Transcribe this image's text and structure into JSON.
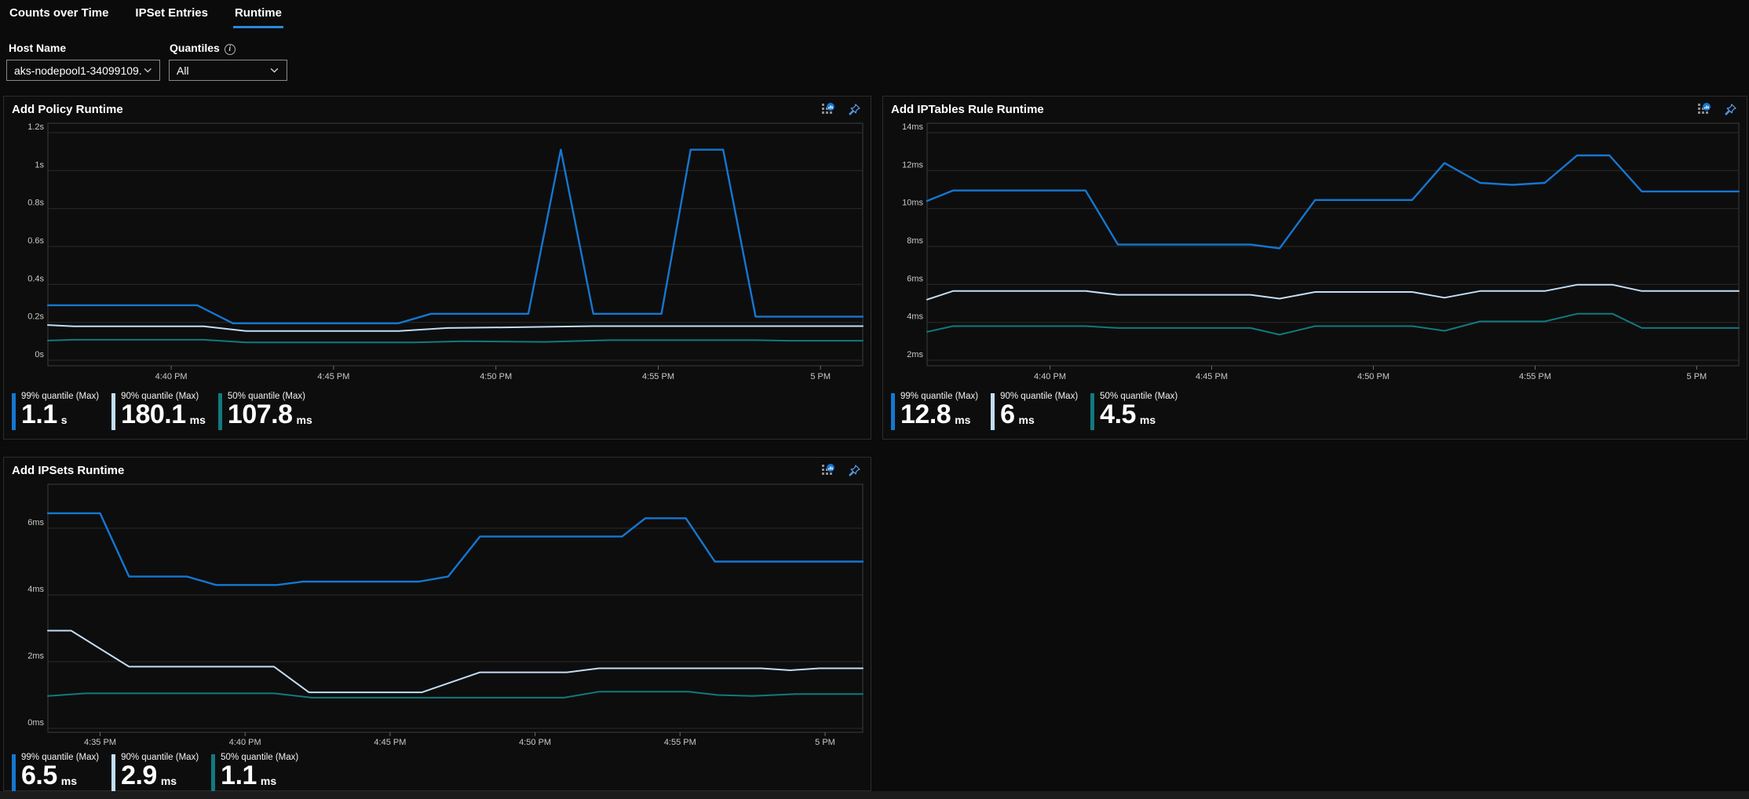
{
  "colors": {
    "accent": "#2b88d8",
    "p99": "#1577d0",
    "p90": "#c3ddf4",
    "p50": "#117a7e",
    "grid": "#2b2b2b",
    "plot_border": "#3d3d3d",
    "axis_text": "#c9c9c9",
    "page_bg": "#0b0b0c",
    "panel_border": "#2d2d2d"
  },
  "tabs": [
    {
      "label": "Counts over Time",
      "active": false
    },
    {
      "label": "IPSet Entries",
      "active": false
    },
    {
      "label": "Runtime",
      "active": true
    }
  ],
  "filters": {
    "host": {
      "label": "Host Name",
      "value": "aks-nodepool1-34099109..."
    },
    "quantiles": {
      "label": "Quantiles",
      "value": "All",
      "info_icon": "info-icon"
    }
  },
  "panels": [
    {
      "title": "Add Policy Runtime",
      "icons": [
        "visualization-icon",
        "pin-icon"
      ],
      "stats": [
        {
          "label": "99% quantile (Max)",
          "value": "1.1",
          "unit": "s",
          "color_key": "p99"
        },
        {
          "label": "90% quantile (Max)",
          "value": "180.1",
          "unit": "ms",
          "color_key": "p90"
        },
        {
          "label": "50% quantile (Max)",
          "value": "107.8",
          "unit": "ms",
          "color_key": "p50"
        }
      ]
    },
    {
      "title": "Add IPTables Rule Runtime",
      "icons": [
        "visualization-icon",
        "pin-icon"
      ],
      "stats": [
        {
          "label": "99% quantile (Max)",
          "value": "12.8",
          "unit": "ms",
          "color_key": "p99"
        },
        {
          "label": "90% quantile (Max)",
          "value": "6",
          "unit": "ms",
          "color_key": "p90"
        },
        {
          "label": "50% quantile (Max)",
          "value": "4.5",
          "unit": "ms",
          "color_key": "p50"
        }
      ]
    },
    {
      "title": "Add IPSets Runtime",
      "icons": [
        "visualization-icon",
        "pin-icon"
      ],
      "stats": [
        {
          "label": "99% quantile (Max)",
          "value": "6.5",
          "unit": "ms",
          "color_key": "p99"
        },
        {
          "label": "90% quantile (Max)",
          "value": "2.9",
          "unit": "ms",
          "color_key": "p90"
        },
        {
          "label": "50% quantile (Max)",
          "value": "1.1",
          "unit": "ms",
          "color_key": "p50"
        }
      ]
    }
  ],
  "chart_data": [
    {
      "type": "line",
      "title": "Add Policy Runtime",
      "y_unit": "seconds",
      "grid": "horizontal",
      "legend_position": "bottom-left",
      "y_ticks": [
        {
          "label": "1.2s",
          "v": 1.2
        },
        {
          "label": "1s",
          "v": 1.0
        },
        {
          "label": "0.8s",
          "v": 0.8
        },
        {
          "label": "0.6s",
          "v": 0.6
        },
        {
          "label": "0.4s",
          "v": 0.4
        },
        {
          "label": "0.2s",
          "v": 0.2
        },
        {
          "label": "0s",
          "v": 0
        }
      ],
      "x_domain": [
        36.2,
        61.3
      ],
      "x_domain_note": "minutes after 4:00 PM",
      "x_ticks": [
        {
          "label": "4:40 PM",
          "t": 40
        },
        {
          "label": "4:45 PM",
          "t": 45
        },
        {
          "label": "4:50 PM",
          "t": 50
        },
        {
          "label": "4:55 PM",
          "t": 55
        },
        {
          "label": "5 PM",
          "t": 60
        }
      ],
      "series": [
        {
          "name": "99% quantile (Max)",
          "color_key": "p99",
          "max": "1.1 s",
          "points": [
            [
              36.2,
              0.29
            ],
            [
              40.8,
              0.29
            ],
            [
              41.9,
              0.195
            ],
            [
              47.0,
              0.195
            ],
            [
              48.0,
              0.245
            ],
            [
              51.0,
              0.245
            ],
            [
              52.0,
              1.11
            ],
            [
              53.0,
              0.245
            ],
            [
              55.1,
              0.245
            ],
            [
              56.0,
              1.11
            ],
            [
              57.0,
              1.11
            ],
            [
              58.0,
              0.23
            ],
            [
              61.3,
              0.23
            ]
          ]
        },
        {
          "name": "90% quantile (Max)",
          "color_key": "p90",
          "max": "180.1 ms",
          "points": [
            [
              36.2,
              0.186
            ],
            [
              37.0,
              0.179
            ],
            [
              41.0,
              0.179
            ],
            [
              42.3,
              0.154
            ],
            [
              47.0,
              0.154
            ],
            [
              48.5,
              0.17
            ],
            [
              50.5,
              0.174
            ],
            [
              53.0,
              0.18
            ],
            [
              61.3,
              0.18
            ]
          ]
        },
        {
          "name": "50% quantile (Max)",
          "color_key": "p50",
          "max": "107.8 ms",
          "points": [
            [
              36.2,
              0.104
            ],
            [
              37.0,
              0.108
            ],
            [
              41.0,
              0.108
            ],
            [
              42.3,
              0.094
            ],
            [
              47.5,
              0.094
            ],
            [
              49.0,
              0.1
            ],
            [
              51.5,
              0.097
            ],
            [
              53.5,
              0.106
            ],
            [
              58.0,
              0.106
            ],
            [
              59.0,
              0.103
            ],
            [
              61.3,
              0.103
            ]
          ]
        }
      ]
    },
    {
      "type": "line",
      "title": "Add IPTables Rule Runtime",
      "y_unit": "ms",
      "grid": "horizontal",
      "legend_position": "bottom-left",
      "y_ticks": [
        {
          "label": "14ms",
          "v": 14
        },
        {
          "label": "12ms",
          "v": 12
        },
        {
          "label": "10ms",
          "v": 10
        },
        {
          "label": "8ms",
          "v": 8
        },
        {
          "label": "6ms",
          "v": 6
        },
        {
          "label": "4ms",
          "v": 4
        },
        {
          "label": "2ms",
          "v": 2
        }
      ],
      "x_domain": [
        36.2,
        61.3
      ],
      "x_domain_note": "minutes after 4:00 PM",
      "x_ticks": [
        {
          "label": "4:40 PM",
          "t": 40
        },
        {
          "label": "4:45 PM",
          "t": 45
        },
        {
          "label": "4:50 PM",
          "t": 50
        },
        {
          "label": "4:55 PM",
          "t": 55
        },
        {
          "label": "5 PM",
          "t": 60
        }
      ],
      "series": [
        {
          "name": "99% quantile (Max)",
          "color_key": "p99",
          "max": "12.8 ms",
          "points": [
            [
              36.2,
              10.4
            ],
            [
              37.0,
              10.95
            ],
            [
              41.1,
              10.95
            ],
            [
              42.1,
              8.1
            ],
            [
              46.2,
              8.1
            ],
            [
              47.1,
              7.9
            ],
            [
              48.2,
              10.45
            ],
            [
              51.2,
              10.45
            ],
            [
              52.2,
              12.4
            ],
            [
              53.3,
              11.35
            ],
            [
              54.3,
              11.25
            ],
            [
              55.3,
              11.35
            ],
            [
              56.3,
              12.8
            ],
            [
              57.3,
              12.8
            ],
            [
              58.3,
              10.9
            ],
            [
              61.3,
              10.9
            ]
          ]
        },
        {
          "name": "90% quantile (Max)",
          "color_key": "p90",
          "max": "6 ms",
          "points": [
            [
              36.2,
              5.2
            ],
            [
              37.0,
              5.65
            ],
            [
              41.1,
              5.65
            ],
            [
              42.1,
              5.45
            ],
            [
              46.2,
              5.45
            ],
            [
              47.1,
              5.25
            ],
            [
              48.2,
              5.6
            ],
            [
              51.2,
              5.6
            ],
            [
              52.2,
              5.3
            ],
            [
              53.3,
              5.65
            ],
            [
              55.3,
              5.65
            ],
            [
              56.3,
              5.98
            ],
            [
              57.4,
              5.98
            ],
            [
              58.3,
              5.65
            ],
            [
              61.3,
              5.65
            ]
          ]
        },
        {
          "name": "50% quantile (Max)",
          "color_key": "p50",
          "max": "4.5 ms",
          "points": [
            [
              36.2,
              3.5
            ],
            [
              37.0,
              3.8
            ],
            [
              41.1,
              3.8
            ],
            [
              42.1,
              3.7
            ],
            [
              46.2,
              3.7
            ],
            [
              47.1,
              3.35
            ],
            [
              48.2,
              3.8
            ],
            [
              51.2,
              3.8
            ],
            [
              52.2,
              3.55
            ],
            [
              53.3,
              4.05
            ],
            [
              55.3,
              4.05
            ],
            [
              56.3,
              4.45
            ],
            [
              57.4,
              4.45
            ],
            [
              58.3,
              3.7
            ],
            [
              61.3,
              3.7
            ]
          ]
        }
      ]
    },
    {
      "type": "line",
      "title": "Add IPSets Runtime",
      "y_unit": "ms",
      "grid": "horizontal",
      "legend_position": "bottom-left",
      "y_ticks": [
        {
          "label": "6ms",
          "v": 6
        },
        {
          "label": "4ms",
          "v": 4
        },
        {
          "label": "2ms",
          "v": 2
        },
        {
          "label": "0ms",
          "v": 0
        }
      ],
      "x_domain": [
        33.2,
        61.3
      ],
      "x_domain_note": "minutes after 4:00 PM",
      "x_ticks": [
        {
          "label": "4:35 PM",
          "t": 35
        },
        {
          "label": "4:40 PM",
          "t": 40
        },
        {
          "label": "4:45 PM",
          "t": 45
        },
        {
          "label": "4:50 PM",
          "t": 50
        },
        {
          "label": "4:55 PM",
          "t": 55
        },
        {
          "label": "5 PM",
          "t": 60
        }
      ],
      "series": [
        {
          "name": "99% quantile (Max)",
          "color_key": "p99",
          "max": "6.5 ms",
          "points": [
            [
              33.2,
              6.45
            ],
            [
              35.0,
              6.45
            ],
            [
              36.0,
              4.55
            ],
            [
              38.0,
              4.55
            ],
            [
              39.0,
              4.3
            ],
            [
              41.1,
              4.3
            ],
            [
              42.0,
              4.4
            ],
            [
              46.0,
              4.4
            ],
            [
              47.0,
              4.55
            ],
            [
              48.1,
              5.75
            ],
            [
              53.0,
              5.75
            ],
            [
              53.8,
              6.3
            ],
            [
              55.2,
              6.3
            ],
            [
              56.2,
              5.0
            ],
            [
              61.3,
              5.0
            ]
          ]
        },
        {
          "name": "90% quantile (Max)",
          "color_key": "p90",
          "max": "2.9 ms",
          "points": [
            [
              33.2,
              2.93
            ],
            [
              34.0,
              2.93
            ],
            [
              36.0,
              1.85
            ],
            [
              41.0,
              1.85
            ],
            [
              42.2,
              1.08
            ],
            [
              46.1,
              1.08
            ],
            [
              48.1,
              1.68
            ],
            [
              51.1,
              1.68
            ],
            [
              52.2,
              1.8
            ],
            [
              57.8,
              1.8
            ],
            [
              58.8,
              1.74
            ],
            [
              59.8,
              1.8
            ],
            [
              61.3,
              1.8
            ]
          ]
        },
        {
          "name": "50% quantile (Max)",
          "color_key": "p50",
          "max": "1.1 ms",
          "points": [
            [
              33.2,
              0.97
            ],
            [
              34.5,
              1.05
            ],
            [
              41.0,
              1.05
            ],
            [
              42.3,
              0.92
            ],
            [
              51.0,
              0.92
            ],
            [
              52.2,
              1.1
            ],
            [
              55.3,
              1.1
            ],
            [
              56.3,
              1.0
            ],
            [
              57.5,
              0.97
            ],
            [
              59.0,
              1.03
            ],
            [
              61.3,
              1.03
            ]
          ]
        }
      ]
    }
  ]
}
